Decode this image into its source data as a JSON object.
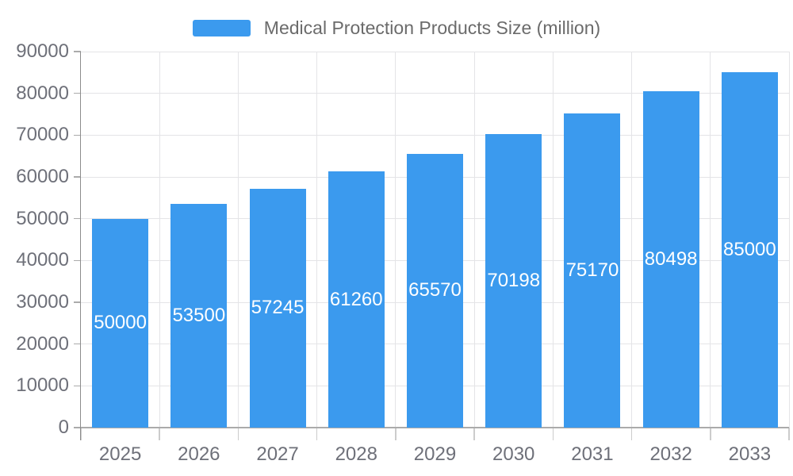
{
  "chart_data": {
    "type": "bar",
    "title": "",
    "legend_label": "Medical Protection Products Size (million)",
    "legend_position": "top-center",
    "categories": [
      "2025",
      "2026",
      "2027",
      "2028",
      "2029",
      "2030",
      "2031",
      "2032",
      "2033"
    ],
    "series": [
      {
        "name": "Medical Protection Products Size (million)",
        "values": [
          50000,
          53500,
          57245,
          61260,
          65570,
          70198,
          75170,
          80498,
          85000
        ]
      }
    ],
    "xlabel": "",
    "ylabel": "",
    "ylim": [
      0,
      90000
    ],
    "ytick_step": 10000,
    "yticks": [
      0,
      10000,
      20000,
      30000,
      40000,
      50000,
      60000,
      70000,
      80000,
      90000
    ],
    "grid": true,
    "value_labels": "inside-center",
    "colors": {
      "bar": "#3B9AEE",
      "value_label": "#FFFFFF",
      "axis_label": "#6E7079",
      "legend_text": "#6B6B6B",
      "gridline": "#E4E4E7",
      "axis_line_y": "#8C8C8C",
      "axis_line_x": "#ABABAB",
      "tick_y": "#ABABAB",
      "tick_x": "#CCCCCC"
    }
  }
}
